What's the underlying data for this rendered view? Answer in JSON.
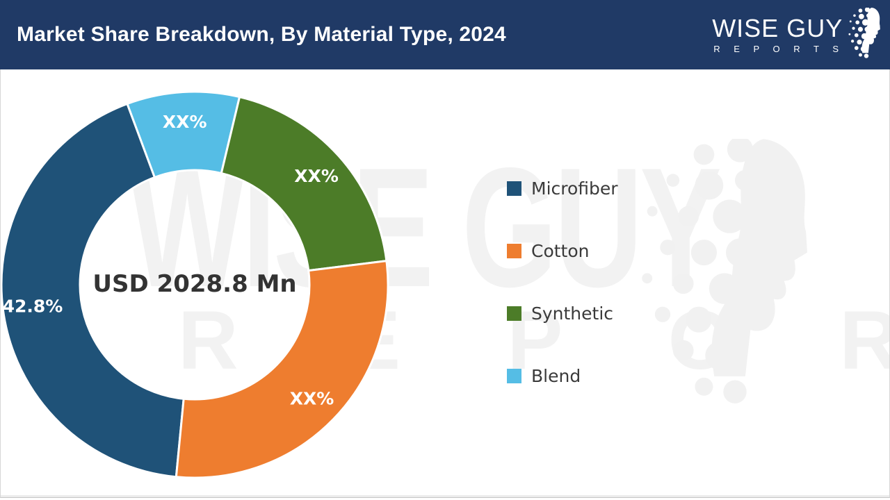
{
  "header": {
    "title": "Market Share Breakdown, By Material Type, 2024",
    "background_color": "#203A66"
  },
  "logo": {
    "line1": "WISE GUY",
    "line2": "R E P O R T S",
    "face_icon": "dotted-face-profile"
  },
  "watermark": {
    "line1": "WISE GUY",
    "line2": "R E P O R T S",
    "color": "#f2f2f2"
  },
  "chart_data": {
    "type": "pie",
    "subtype": "donut",
    "title": "Market Share Breakdown, By Material Type, 2024",
    "center_label": "USD 2028.8 Mn",
    "legend_position": "right",
    "donut": {
      "outer_radius": 278,
      "inner_radius": 165,
      "start_angle_deg": 185.5,
      "draw_order": [
        0,
        3,
        2,
        1
      ],
      "gap_color": "#ffffff"
    },
    "segments": [
      {
        "name": "Microfiber",
        "label": "42.8%",
        "value_pct": 42.8,
        "color": "#1F5278"
      },
      {
        "name": "Cotton",
        "label": "XX%",
        "value_pct": 28.5,
        "color": "#EE7D2F"
      },
      {
        "name": "Synthetic",
        "label": "XX%",
        "value_pct": 19.3,
        "color": "#4C7C28"
      },
      {
        "name": "Blend",
        "label": "XX%",
        "value_pct": 9.4,
        "color": "#55BDE5"
      }
    ],
    "label_color": "#ffffff",
    "center_label_color": "#333333"
  }
}
